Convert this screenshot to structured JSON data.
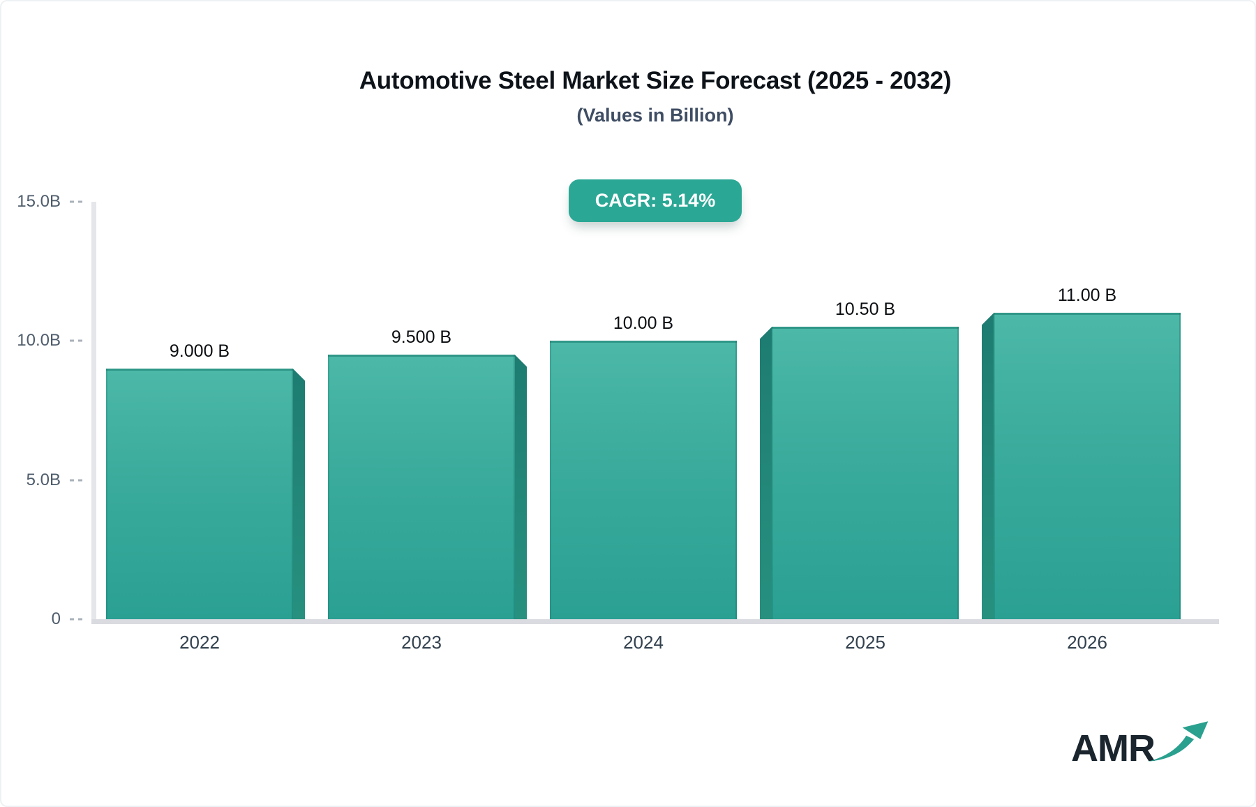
{
  "header": {
    "title": "Automotive Steel Market Size Forecast (2025 - 2032)",
    "subtitle": "(Values in Billion)"
  },
  "badge": {
    "label": "CAGR: 5.14%",
    "color": "#2aa795"
  },
  "chart_data": {
    "type": "bar",
    "title": "Automotive Steel Market Size Forecast (2025 - 2032)",
    "subtitle": "(Values in Billion)",
    "categories": [
      "2022",
      "2023",
      "2024",
      "2025",
      "2026"
    ],
    "values": [
      9.0,
      9.5,
      10.0,
      10.5,
      11.0
    ],
    "value_labels": [
      "9.000 B",
      "9.500 B",
      "10.00 B",
      "10.50 B",
      "11.00 B"
    ],
    "xlabel": "",
    "ylabel": "",
    "ylim": [
      0,
      15
    ],
    "yticks": [
      {
        "value": 0,
        "label": "0"
      },
      {
        "value": 5,
        "label": "5.0B"
      },
      {
        "value": 10,
        "label": "10.0B"
      },
      {
        "value": 15,
        "label": "15.0B"
      }
    ],
    "grid": false,
    "legend": "none",
    "bar_style": "3d-extruded-center-perspective",
    "colors": {
      "bar_face_top": "#4cb8a8",
      "bar_face_bottom": "#2aa093",
      "bar_side": "#1e7c71",
      "axis_line": "#dadce0",
      "tick_label": "#4e5c6b",
      "category_label": "#33414e",
      "value_label": "#0b0e11",
      "title": "#0d1319",
      "subtitle": "#3e4d63"
    }
  },
  "logo": {
    "text": "AMR",
    "icon": "growth-arrow-icon",
    "arrow_color": "#2aa08f"
  }
}
